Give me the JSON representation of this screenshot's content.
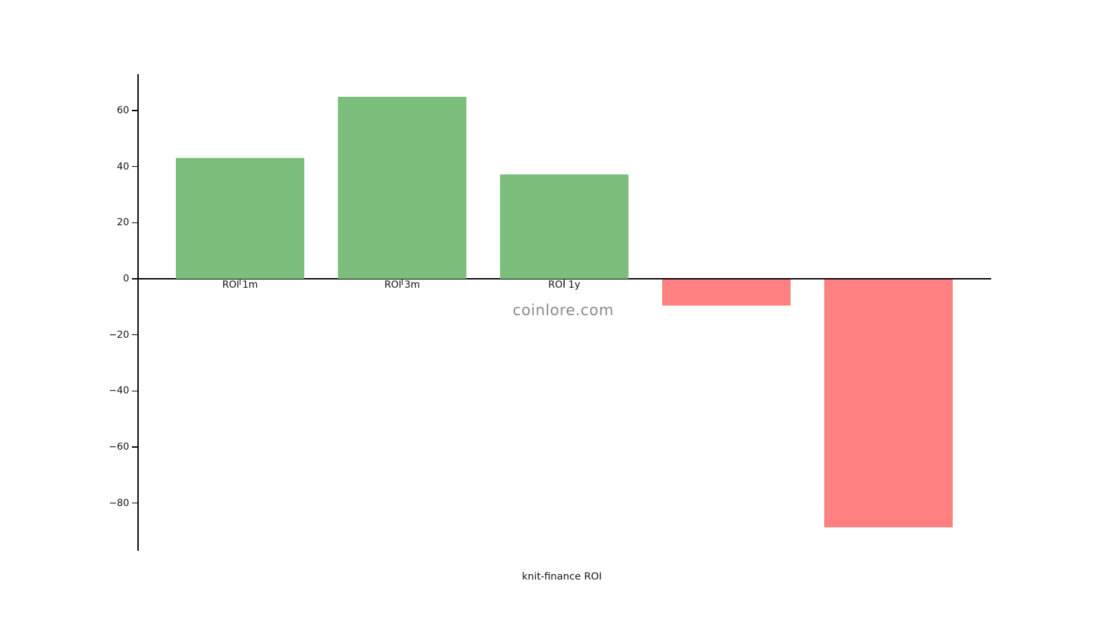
{
  "chart_data": {
    "type": "bar",
    "xlabel": "knit-finance ROI",
    "watermark": "coinlore.com",
    "categories": [
      "ROI 1m",
      "ROI 3m",
      "ROI 1y",
      "",
      ""
    ],
    "values": [
      43.1,
      65.0,
      37.2,
      -9.3,
      -88.4
    ],
    "positive_color": "#7cbf7c",
    "negative_color": "#ff8080",
    "axis_color": "#000000",
    "watermark_color": "#8c8c8c",
    "background_color": "#ffffff",
    "yticks": [
      60,
      40,
      20,
      0,
      -20,
      -40,
      -60,
      -80
    ],
    "ytick_labels": [
      "60",
      "40",
      "20",
      "0",
      "−20",
      "−40",
      "−60",
      "−80"
    ],
    "ylim": [
      -97,
      73
    ],
    "grid": false,
    "legend": "none",
    "notes": "green bars = positive ROI, red bars = negative ROI; x tick labels of the two negative bars are hidden behind the bars"
  }
}
